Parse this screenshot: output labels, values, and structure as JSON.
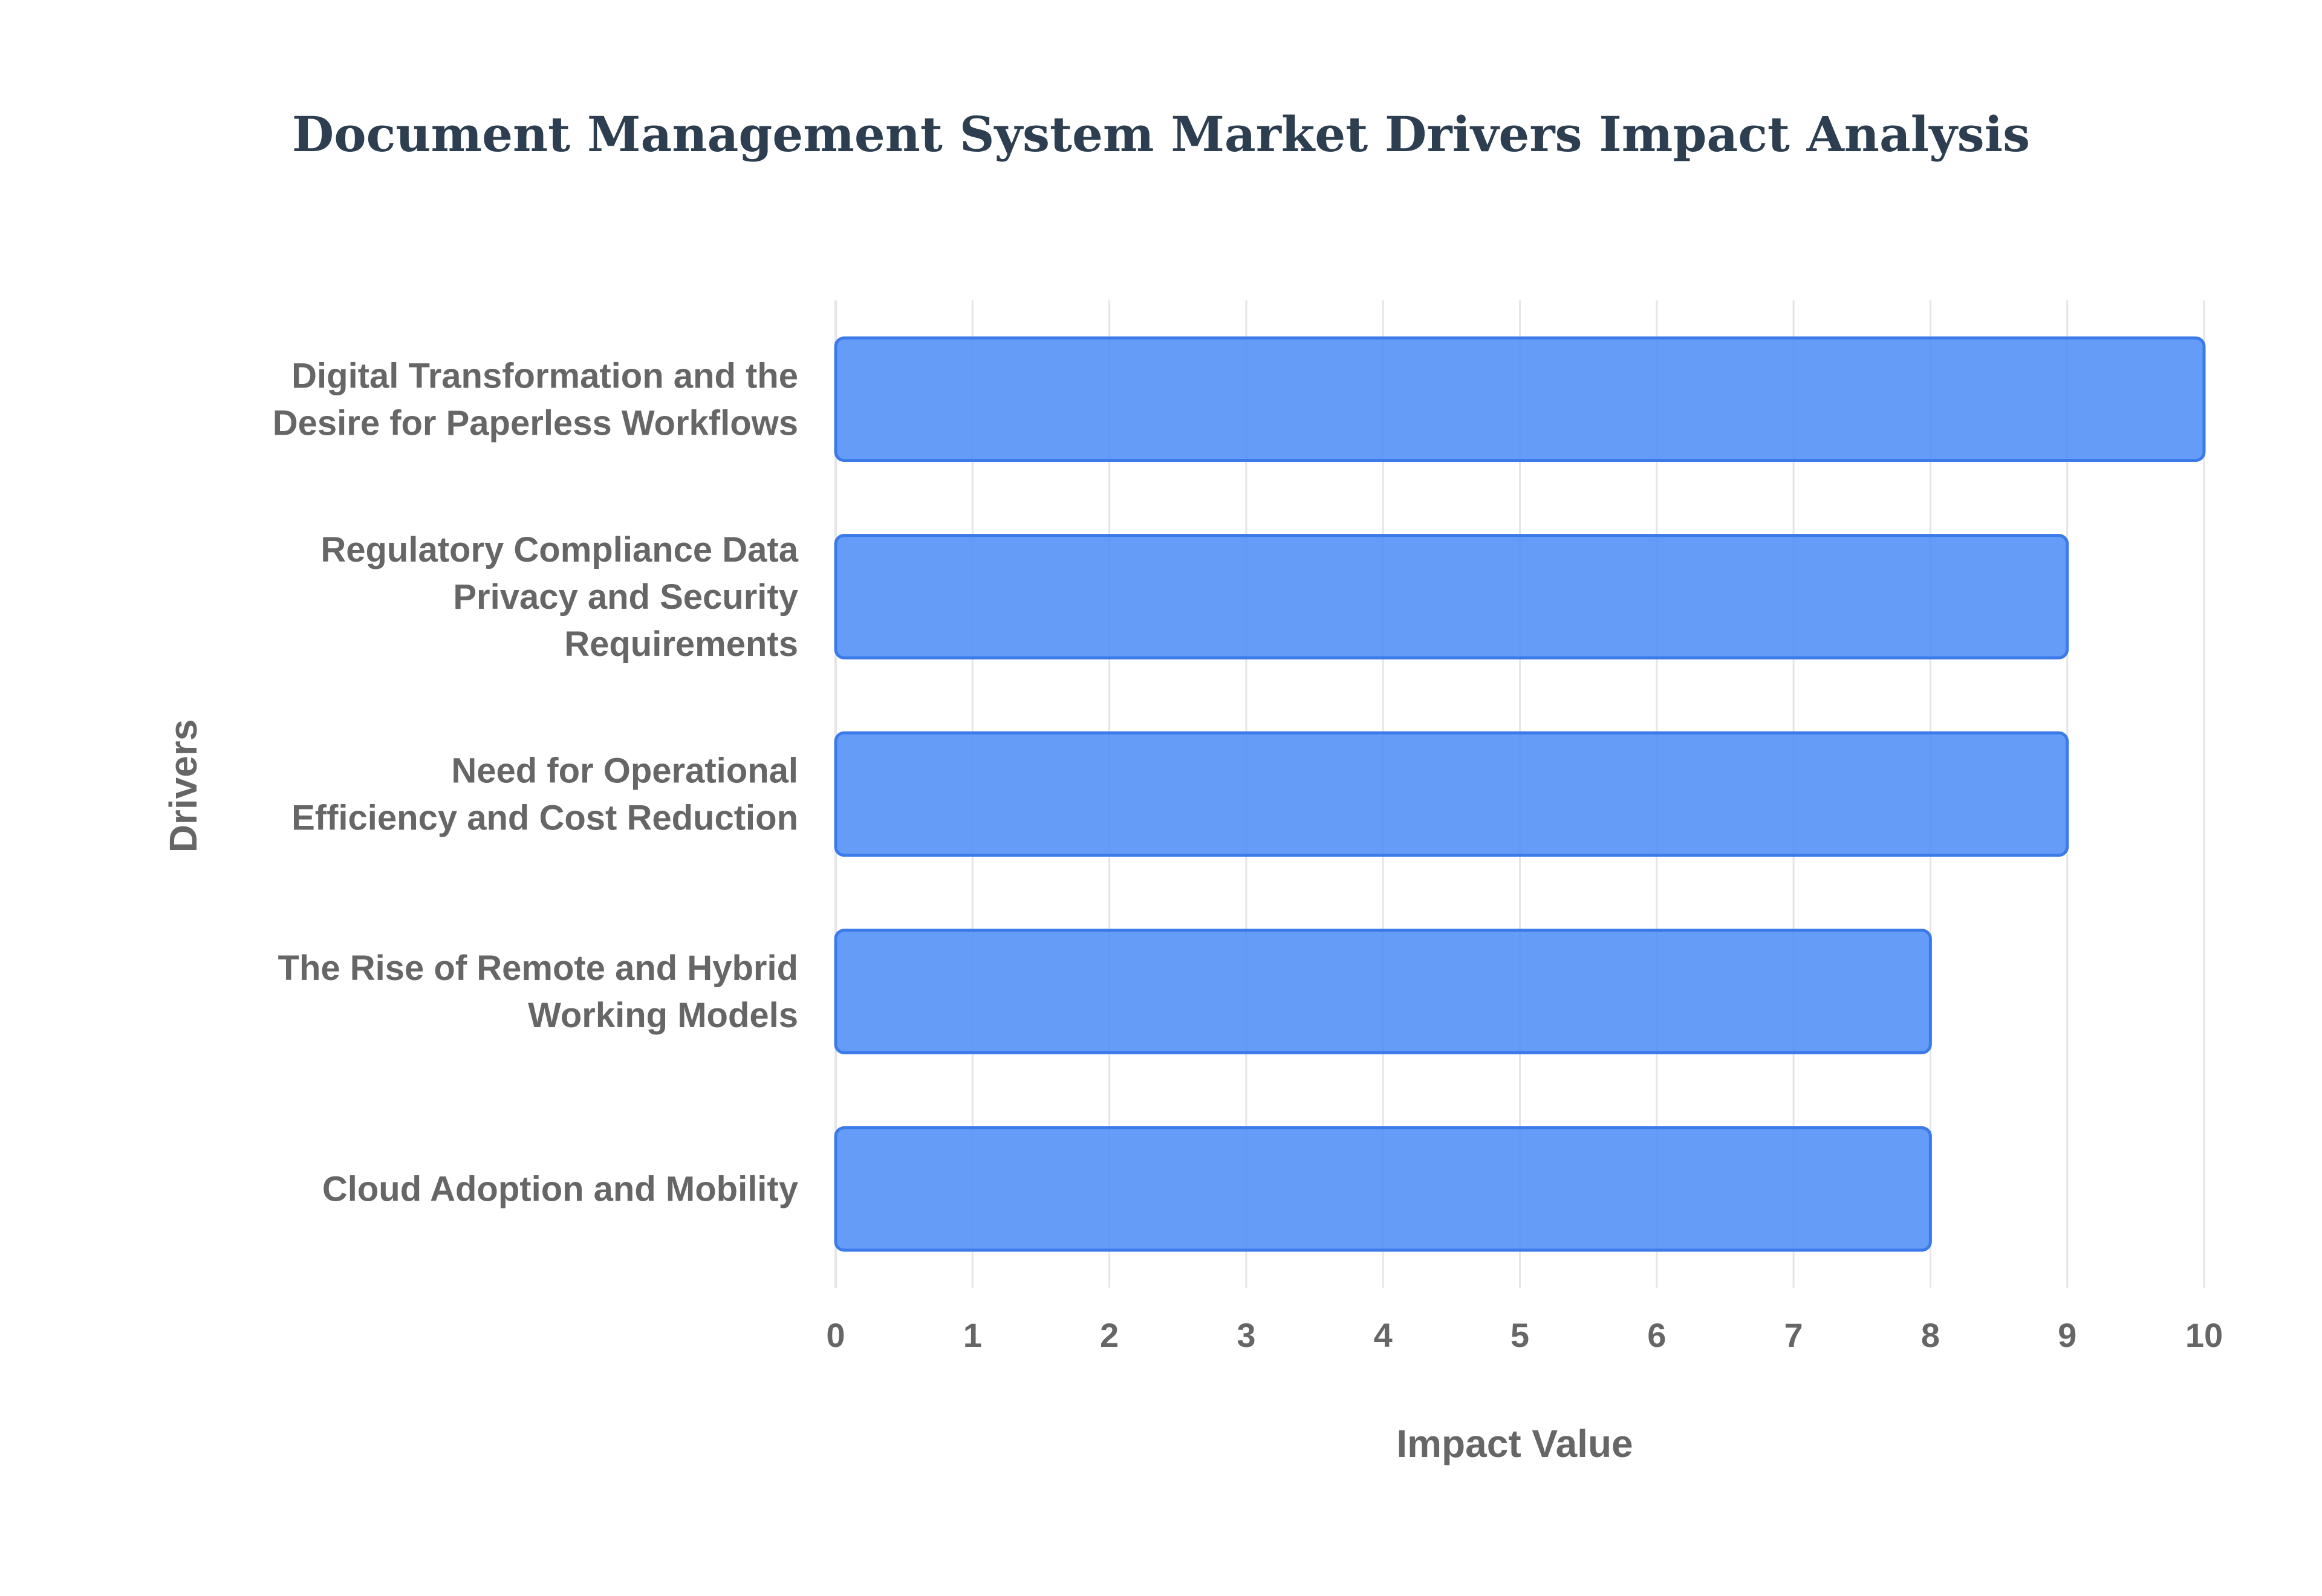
{
  "colors": {
    "bar_fill": "#4F8EF7",
    "bar_stroke": "#3B7AE8",
    "grid": "#E5E5E5",
    "axis_text": "#666666",
    "title": "#2C3E50",
    "background": "#FFFFFF"
  },
  "chart_data": {
    "type": "bar",
    "orientation": "horizontal",
    "title": "Document Management System Market Drivers Impact Analysis",
    "xlabel": "Impact Value",
    "ylabel": "Drivers",
    "xlim": [
      0,
      10
    ],
    "x_ticks": [
      "0",
      "1",
      "2",
      "3",
      "4",
      "5",
      "6",
      "7",
      "8",
      "9",
      "10"
    ],
    "grid": true,
    "legend": "none",
    "categories": [
      [
        "Digital Transformation and the",
        "Desire for Paperless Workflows"
      ],
      [
        "Regulatory Compliance Data",
        "Privacy and Security",
        "Requirements"
      ],
      [
        "Need for Operational",
        "Efficiency and Cost Reduction"
      ],
      [
        "The Rise of Remote and Hybrid",
        "Working Models"
      ],
      [
        "Cloud Adoption and Mobility"
      ]
    ],
    "values": [
      10,
      9,
      9,
      8,
      8
    ]
  }
}
